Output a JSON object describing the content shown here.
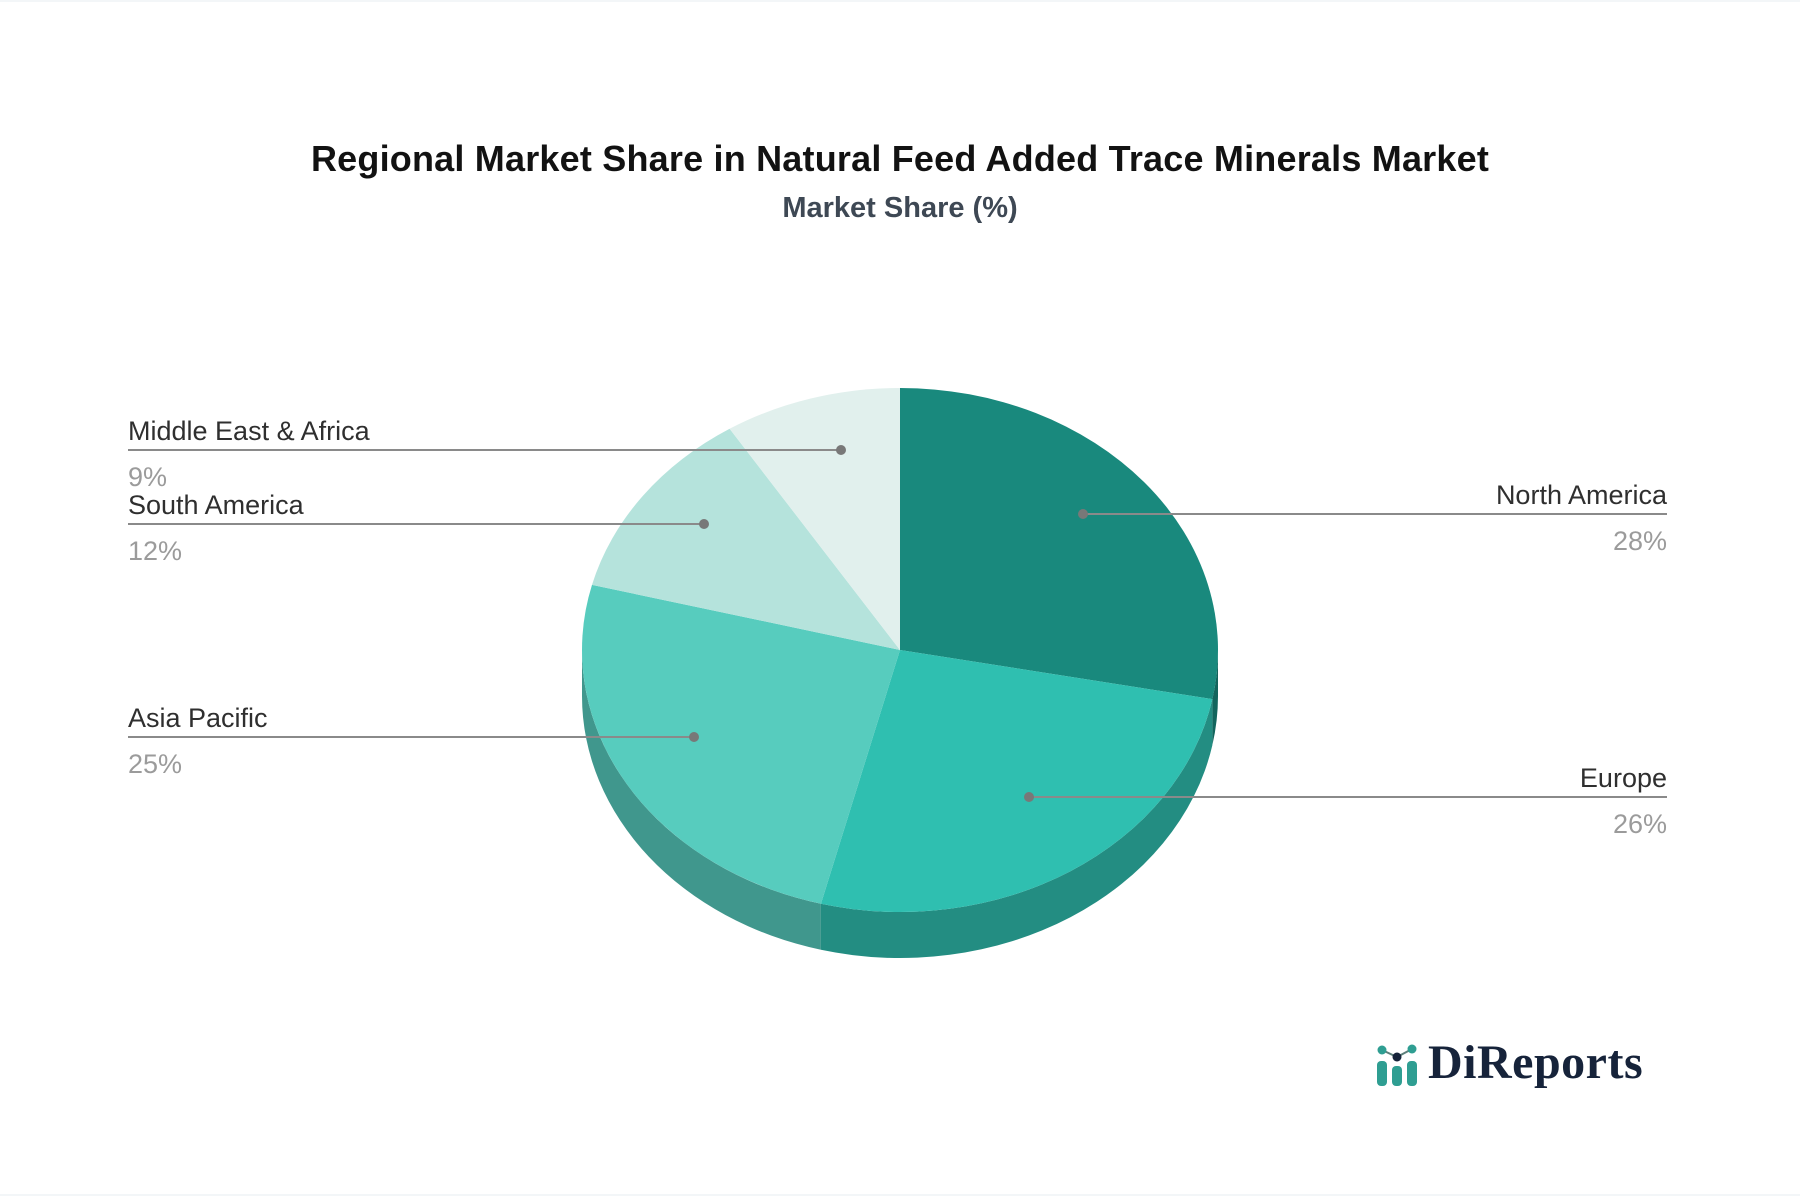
{
  "header": {
    "title": "Regional Market Share in Natural Feed Added Trace Minerals Market",
    "subtitle": "Market Share (%)"
  },
  "brand": {
    "logo_text": "DiReports"
  },
  "colors": {
    "background": "#ffffff",
    "title_text": "#121212",
    "subtitle_text": "#3e4854",
    "label_text": "#2f2f2f",
    "value_text": "#9b9b9b",
    "leader_line": "#8a8a8a",
    "leader_dot": "#787878",
    "brand_navy": "#16233a",
    "brand_teal": "#2f9e92"
  },
  "chart_data": {
    "type": "pie",
    "style": "3d",
    "title": "Regional Market Share in Natural Feed Added Trace Minerals Market",
    "subtitle": "Market Share (%)",
    "unit": "%",
    "start_angle_deg": 0,
    "direction": "clockwise",
    "legend_position": "none",
    "categories": [
      "North America",
      "Europe",
      "Asia Pacific",
      "South America",
      "Middle East & Africa"
    ],
    "values": [
      28,
      26,
      25,
      12,
      9
    ],
    "items": [
      {
        "label": "North America",
        "value": 28,
        "pct": "28%",
        "color": "#19897d",
        "label_side": "right"
      },
      {
        "label": "Europe",
        "value": 26,
        "pct": "26%",
        "color": "#2fbfb0",
        "label_side": "right"
      },
      {
        "label": "Asia Pacific",
        "value": 25,
        "pct": "25%",
        "color": "#57ccbe",
        "label_side": "left"
      },
      {
        "label": "South America",
        "value": 12,
        "pct": "12%",
        "color": "#b5e3dc",
        "label_side": "left"
      },
      {
        "label": "Middle East & Africa",
        "value": 9,
        "pct": "9%",
        "color": "#e1f0ed",
        "label_side": "left"
      }
    ]
  }
}
